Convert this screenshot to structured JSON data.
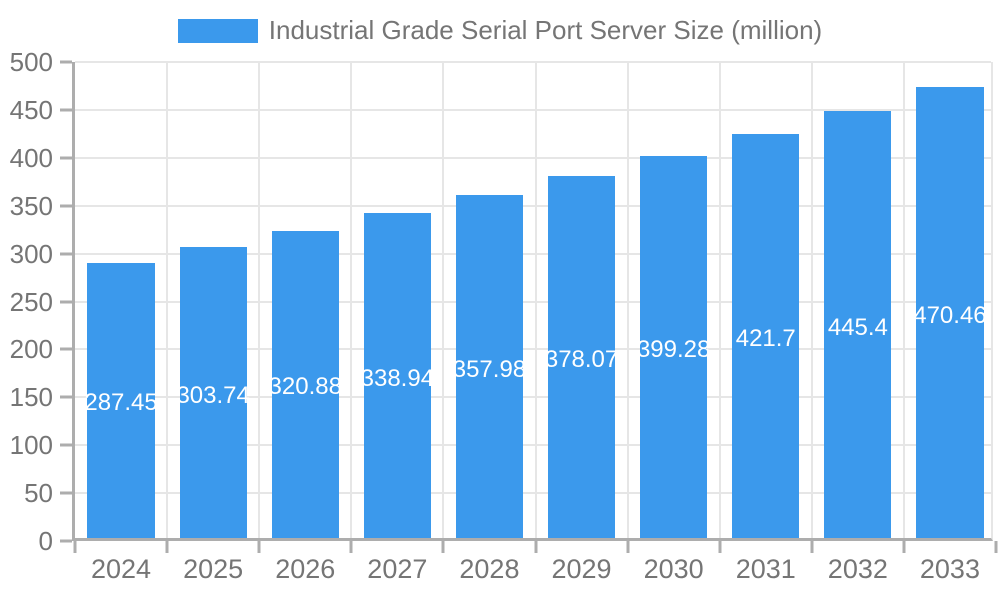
{
  "colors": {
    "bar": "#3B99EC",
    "grid": "#E6E6E6",
    "axis": "#ADADAD",
    "text": "#757575",
    "bar_label": "#FFFFFF",
    "background": "#FFFFFF"
  },
  "chart_data": {
    "type": "bar",
    "series_name": "Industrial Grade Serial Port Server Size (million)",
    "title": "Industrial Grade Serial Port Server Size (million)",
    "categories": [
      "2024",
      "2025",
      "2026",
      "2027",
      "2028",
      "2029",
      "2030",
      "2031",
      "2032",
      "2033"
    ],
    "values": [
      287.45,
      303.74,
      320.88,
      338.94,
      357.98,
      378.07,
      399.28,
      421.7,
      445.4,
      470.46
    ],
    "xlabel": "",
    "ylabel": "",
    "ylim": [
      0,
      500
    ],
    "ytick_step": 50,
    "yticks": [
      0,
      50,
      100,
      150,
      200,
      250,
      300,
      350,
      400,
      450,
      500
    ],
    "grid": true,
    "legend_position": "top",
    "value_labels": "inside-center-white"
  }
}
